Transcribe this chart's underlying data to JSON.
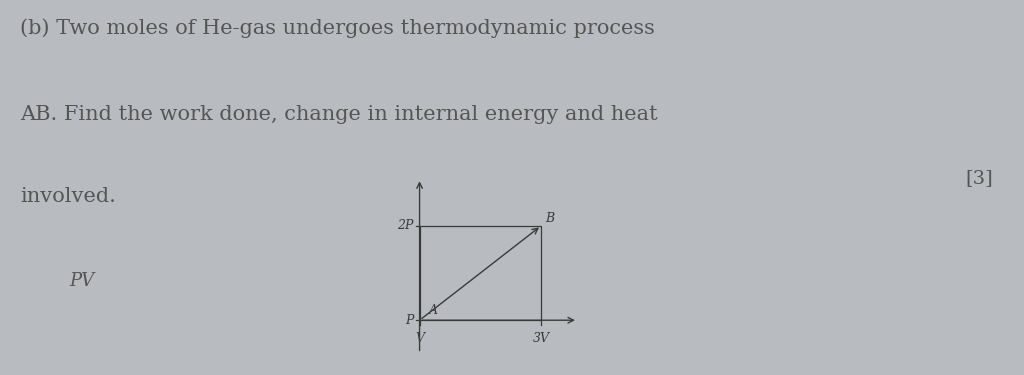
{
  "background_color": "#b8bcc0",
  "text_line1": "(b) Two moles of He-gas undergoes thermodynamic process",
  "text_line2": "AB. Find the work done, change in internal energy and heat",
  "text_line3": "involved.",
  "marks": "[3]",
  "pv_label": "PV",
  "point_A": [
    1,
    1
  ],
  "point_B": [
    3,
    2
  ],
  "x_ticks": [
    1,
    3
  ],
  "x_tick_labels": [
    "V",
    "3V"
  ],
  "y_ticks": [
    1,
    2
  ],
  "y_tick_labels": [
    "P",
    "2P"
  ],
  "rect_x": [
    1,
    3,
    3,
    1,
    1
  ],
  "rect_y": [
    1,
    1,
    2,
    2,
    1
  ],
  "arrow_color": "#3a3a3a",
  "rect_color": "#3a3a3a",
  "axis_color": "#3a3a3a",
  "text_color": "#555555",
  "label_color": "#3a3a3a",
  "fontsize_text": 15,
  "fontsize_marks": 14,
  "fontsize_diagram": 9
}
